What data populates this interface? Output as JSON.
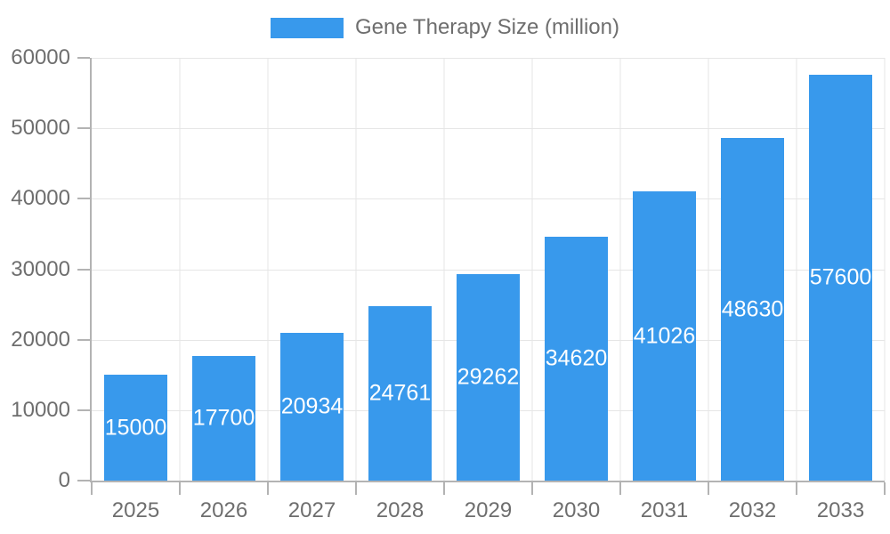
{
  "chart_data": {
    "type": "bar",
    "title": "",
    "xlabel": "",
    "ylabel": "",
    "categories": [
      "2025",
      "2026",
      "2027",
      "2028",
      "2029",
      "2030",
      "2031",
      "2032",
      "2033"
    ],
    "series": [
      {
        "name": "Gene Therapy Size (million)",
        "values": [
          15000,
          17700,
          20934,
          24761,
          29262,
          34620,
          41026,
          48630,
          57600
        ]
      }
    ],
    "bar_value_labels_visible": true,
    "y_axis": {
      "min": 0,
      "max": 60000,
      "tick_step": 10000,
      "tick_labels": [
        "0",
        "10000",
        "20000",
        "30000",
        "40000",
        "50000",
        "60000"
      ]
    },
    "grid": true,
    "legend_position": "top",
    "colors": {
      "bar": "#3899ec",
      "grid": "#e6e6e6",
      "axis": "#b3b3b3",
      "text": "#6e6e6e",
      "bar_label": "#ffffff",
      "background": "#ffffff"
    }
  }
}
